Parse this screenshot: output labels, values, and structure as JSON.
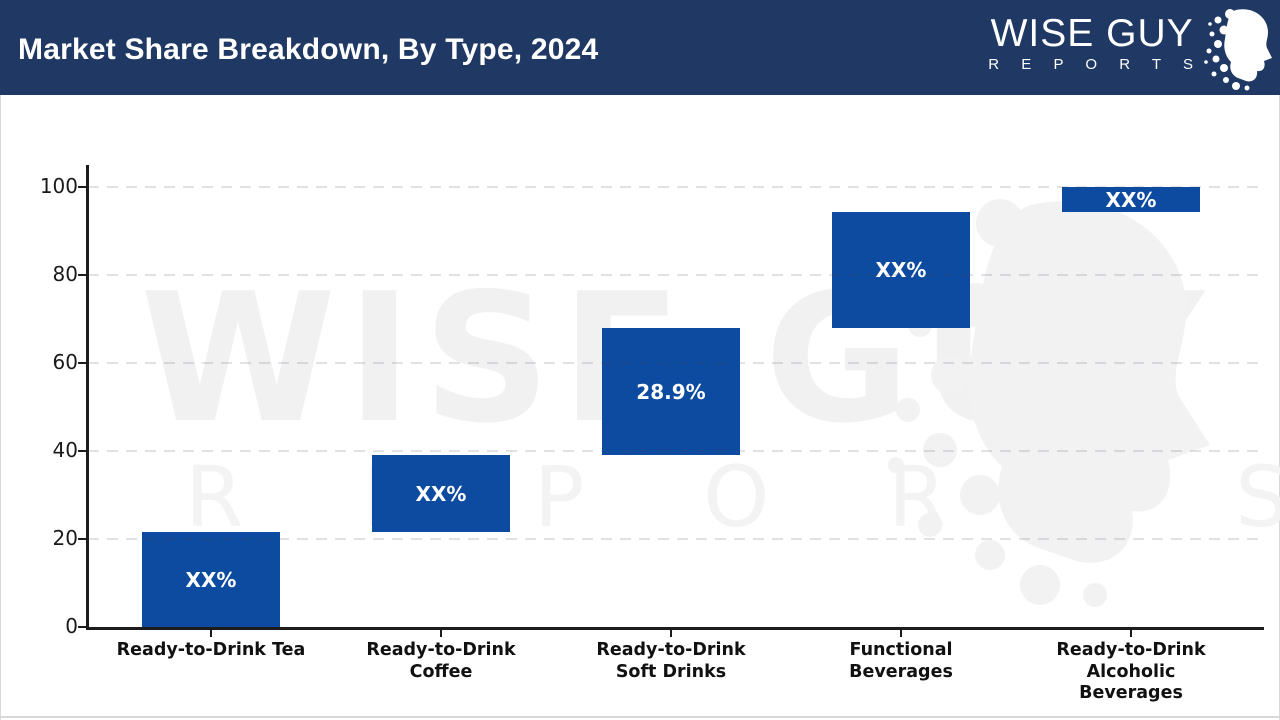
{
  "header": {
    "title": "Market Share Breakdown, By Type, 2024",
    "bg_color": "#1f3864",
    "logo_line1": "WISE GUY",
    "logo_line2": "R E P O R T S"
  },
  "watermark": {
    "line1": "WISE GUY",
    "line2": "R E P O R T S"
  },
  "chart_data": {
    "type": "bar",
    "subtype": "waterfall",
    "title": "Market Share Breakdown, By Type, 2024",
    "categories": [
      "Ready-to-Drink Tea",
      "Ready-to-Drink Coffee",
      "Ready-to-Drink Soft Drinks",
      "Functional Beverages",
      "Ready-to-Drink Alcoholic Beverages"
    ],
    "category_display_lines": [
      [
        "Ready-to-Drink Tea"
      ],
      [
        "Ready-to-Drink",
        "Coffee"
      ],
      [
        "Ready-to-Drink",
        "Soft Drinks"
      ],
      [
        "Functional",
        "Beverages"
      ],
      [
        "Ready-to-Drink",
        "Alcoholic",
        "Beverages"
      ]
    ],
    "segments": [
      {
        "category": "Ready-to-Drink Tea",
        "start": 0,
        "end": 21.5,
        "label": "XX%"
      },
      {
        "category": "Ready-to-Drink Coffee",
        "start": 21.5,
        "end": 39.0,
        "label": "XX%"
      },
      {
        "category": "Ready-to-Drink Soft Drinks",
        "start": 39.0,
        "end": 67.9,
        "label": "28.9%"
      },
      {
        "category": "Functional Beverages",
        "start": 67.9,
        "end": 94.3,
        "label": "XX%"
      },
      {
        "category": "Ready-to-Drink Alcoholic Beverages",
        "start": 94.3,
        "end": 100,
        "label": "XX%"
      }
    ],
    "bar_labels": [
      "XX%",
      "XX%",
      "28.9%",
      "XX%",
      "XX%"
    ],
    "ylim": [
      0,
      100
    ],
    "yticks": [
      0,
      20,
      40,
      60,
      80,
      100
    ],
    "grid": "horizontal dashed",
    "legend": "none",
    "bar_color": "#0d4ba1",
    "xlabel": "",
    "ylabel": ""
  }
}
